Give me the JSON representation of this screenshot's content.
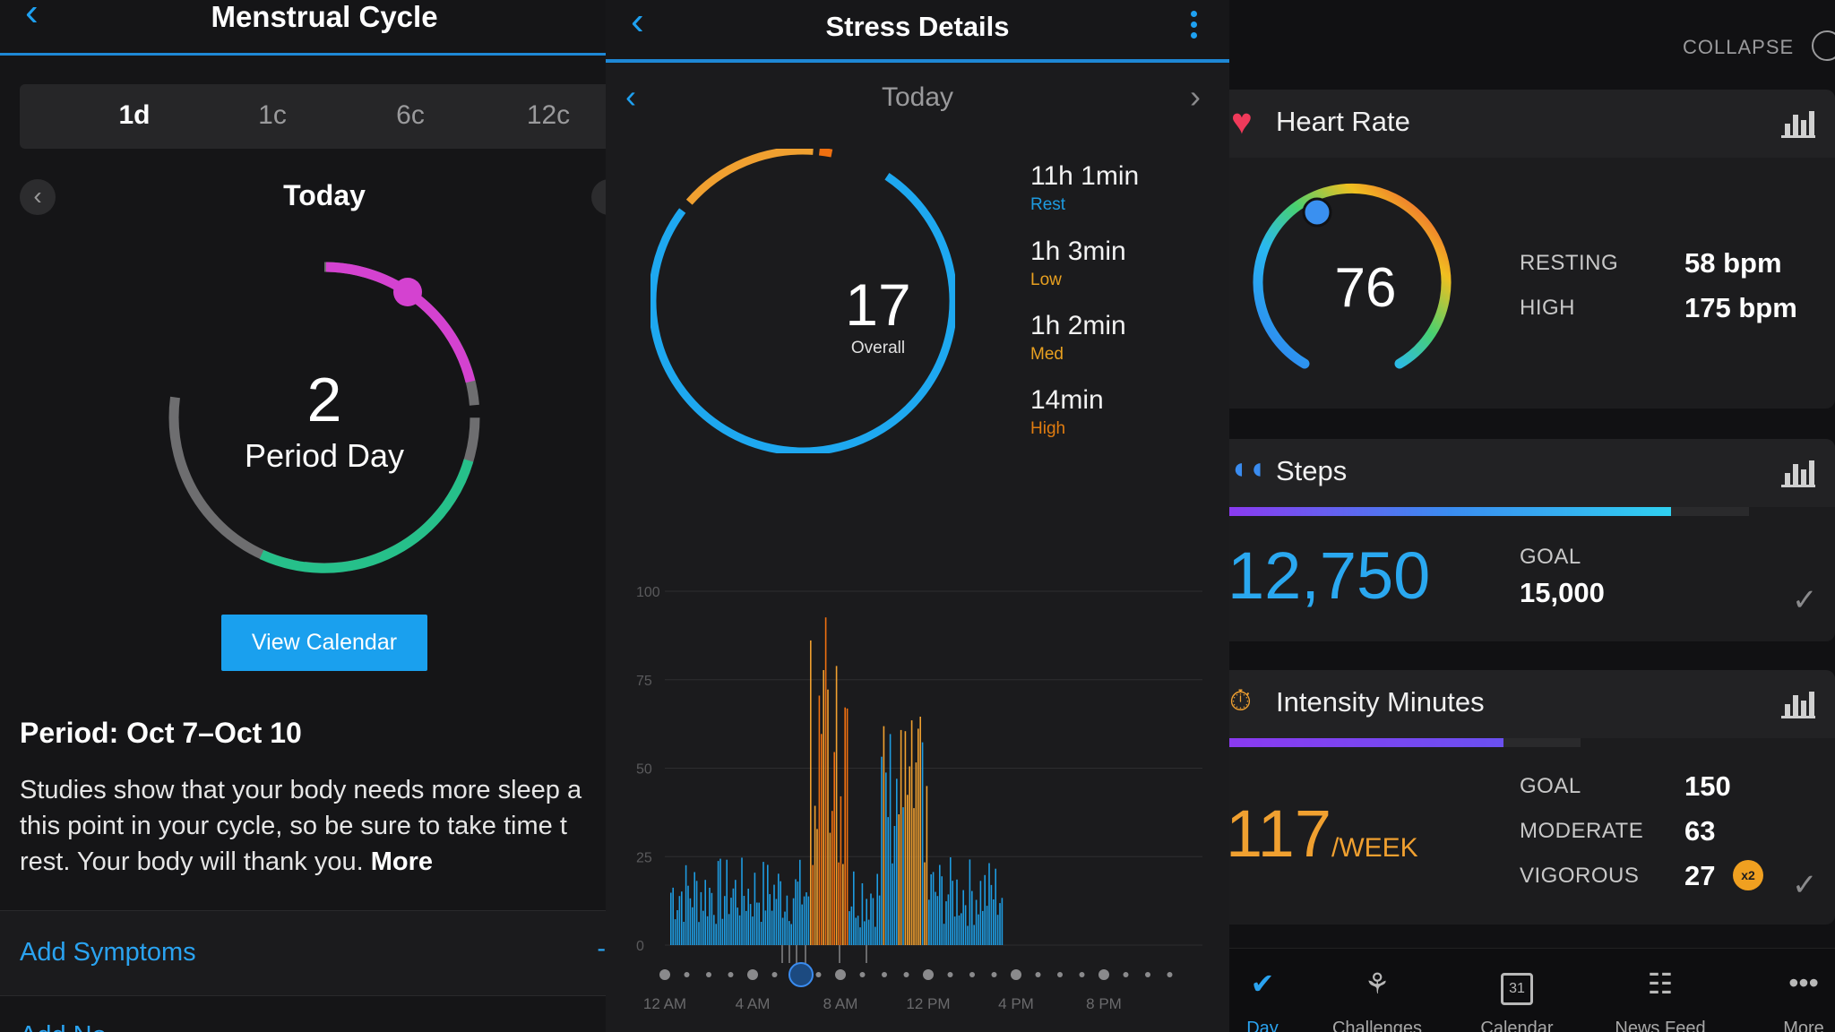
{
  "menstrual": {
    "title": "Menstrual Cycle",
    "tabs": [
      "1d",
      "1c",
      "6c",
      "12c"
    ],
    "active_tab": "1d",
    "date_label": "Today",
    "ring_value": "2",
    "ring_label": "Period Day",
    "view_calendar": "View Calendar",
    "period_heading": "Period: Oct 7–Oct 10",
    "body_lines": [
      "Studies show that your body needs more sleep a",
      "this point in your cycle, so be sure to take time t",
      "rest. Your body will thank you."
    ],
    "more_link": "More",
    "add_symptoms": "Add Symptoms",
    "add_notes_partial": "Add No"
  },
  "stress": {
    "title": "Stress Details",
    "date_label": "Today",
    "overall_value": "17",
    "overall_label": "Overall",
    "levels": [
      {
        "time": "11h 1min",
        "name": "Rest",
        "color": "#1e9be0"
      },
      {
        "time": "1h 3min",
        "name": "Low",
        "color": "#e8a020"
      },
      {
        "time": "1h 2min",
        "name": "Med",
        "color": "#e8a020"
      },
      {
        "time": "14min",
        "name": "High",
        "color": "#e07c10"
      }
    ],
    "chart_data": {
      "type": "bar",
      "y_ticks": [
        "100",
        "75",
        "50",
        "25",
        "0"
      ],
      "ylim": [
        0,
        100
      ],
      "x_ticks": [
        "12 AM",
        "4 AM",
        "8 AM",
        "12 PM",
        "4 PM",
        "8 PM"
      ],
      "colors": {
        "rest": "#1e9be0",
        "stress": "#f0a030",
        "high": "#f07010"
      }
    }
  },
  "summary": {
    "collapse_label": "COLLAPSE",
    "heart_rate": {
      "title": "Heart Rate",
      "current": "76",
      "resting_label": "RESTING",
      "resting_value": "58 bpm",
      "high_label": "HIGH",
      "high_value": "175 bpm"
    },
    "steps": {
      "title": "Steps",
      "value": "12,750",
      "goal_label": "GOAL",
      "goal_value": "15,000",
      "progress": 0.85
    },
    "intensity": {
      "title": "Intensity Minutes",
      "value": "117",
      "unit": "/WEEK",
      "goal_label": "GOAL",
      "goal_value": "150",
      "moderate_label": "MODERATE",
      "moderate_value": "63",
      "vigorous_label": "VIGOROUS",
      "vigorous_value": "27",
      "vigorous_badge": "x2",
      "progress": 0.78
    },
    "tabs": [
      "Day",
      "Challenges",
      "Calendar",
      "News Feed",
      "More"
    ],
    "calendar_icon_day": "31"
  }
}
